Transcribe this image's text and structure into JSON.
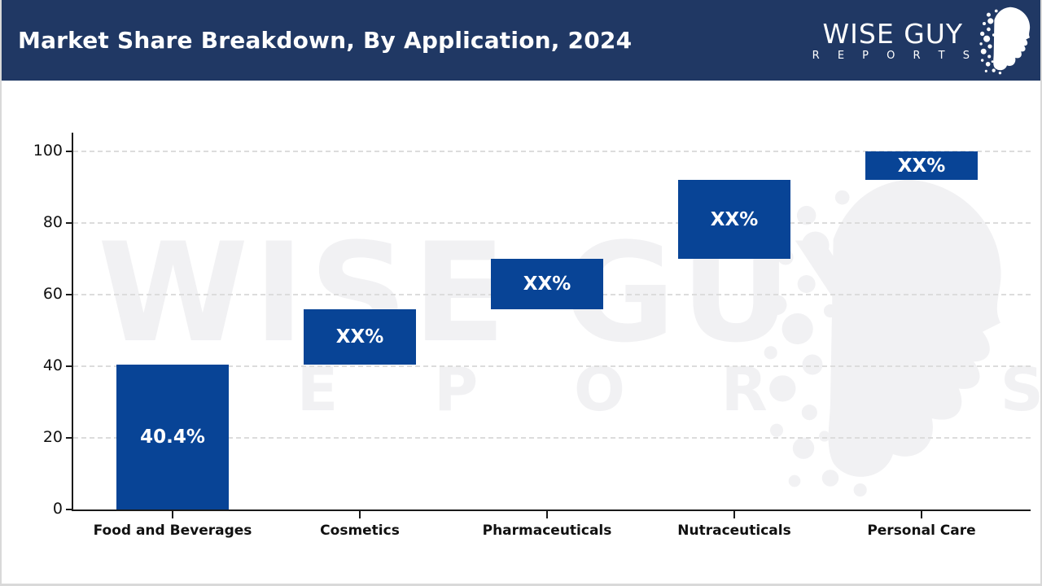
{
  "header": {
    "title": "Market Share Breakdown, By Application, 2024",
    "bg_color": "#203864",
    "logo": {
      "line1": "WISE GUY",
      "line2": "R E P O R T S"
    }
  },
  "watermark": {
    "line1": "WISE GUY",
    "line2": "R E P O R T S"
  },
  "chart_data": {
    "type": "bar",
    "subtype": "waterfall",
    "title": "Market Share Breakdown, By Application, 2024",
    "categories": [
      "Food and Beverages",
      "Cosmetics",
      "Pharmaceuticals",
      "Nutraceuticals",
      "Personal Care"
    ],
    "segments": [
      {
        "category": "Food and Beverages",
        "start": 0,
        "end": 40.4,
        "label": "40.4%"
      },
      {
        "category": "Cosmetics",
        "start": 40.4,
        "end": 56,
        "label": "XX%"
      },
      {
        "category": "Pharmaceuticals",
        "start": 56,
        "end": 70,
        "label": "XX%"
      },
      {
        "category": "Nutraceuticals",
        "start": 70,
        "end": 92,
        "label": "XX%"
      },
      {
        "category": "Personal Care",
        "start": 92,
        "end": 100,
        "label": "XX%"
      }
    ],
    "yticks": [
      0,
      20,
      40,
      60,
      80,
      100
    ],
    "ylim": [
      0,
      100
    ],
    "xlabel": "",
    "ylabel": "",
    "bar_color": "#084496",
    "bar_label_color": "#ffffff",
    "grid": "dashed-horizontal",
    "legend": "none"
  }
}
